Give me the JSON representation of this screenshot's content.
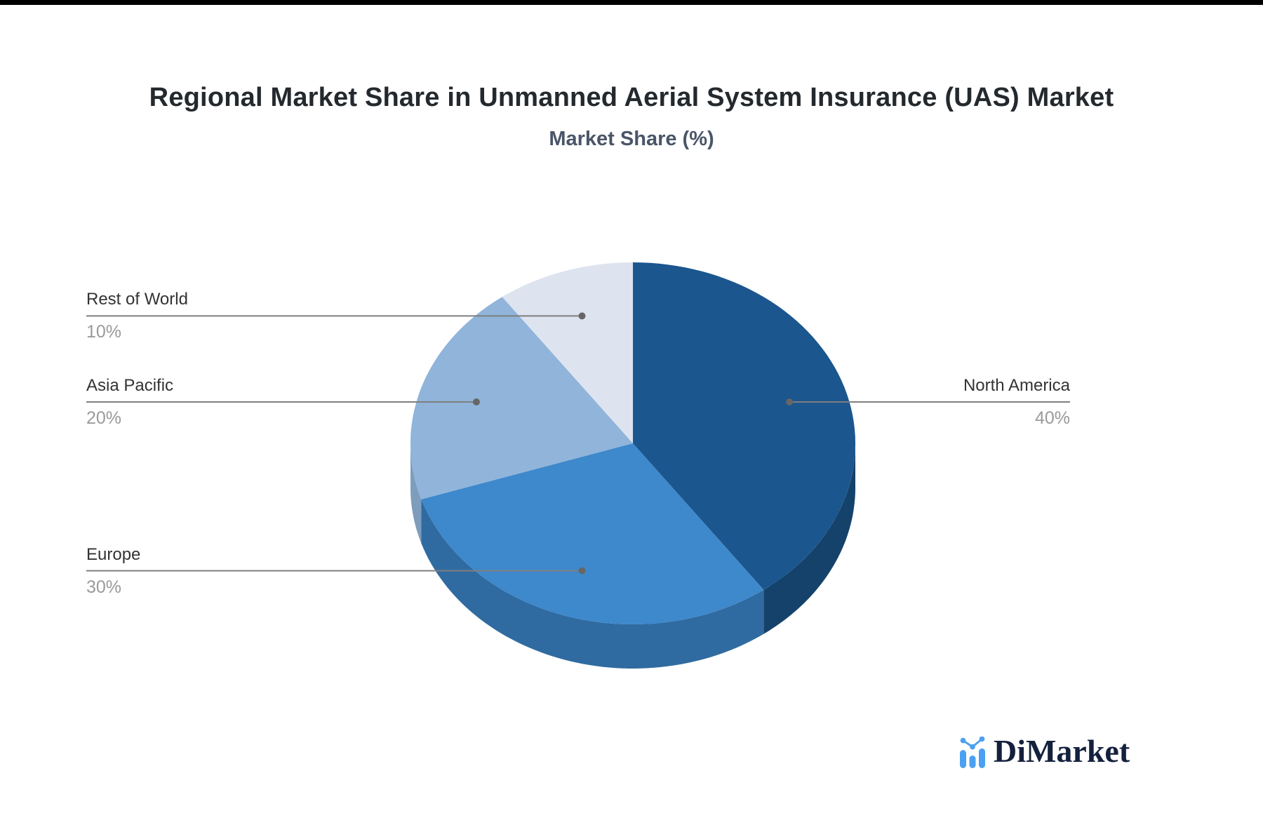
{
  "title": "Regional Market Share in Unmanned Aerial System Insurance (UAS) Market",
  "subtitle": "Market Share (%)",
  "brand": {
    "name": "DiMarket",
    "icon": "bar-line-chart-icon",
    "icon_color": "#4ba0f2",
    "text_color": "#14213d"
  },
  "colors": {
    "background": "#ffffff",
    "top_border": "#000000",
    "title_text": "#24292e",
    "subtitle_text": "#4a5568",
    "callout_label_text": "#333333",
    "callout_value_text": "#9a9a9a",
    "callout_line": "#7f7f7f",
    "callout_dot": "#666666"
  },
  "chart_data": {
    "type": "pie",
    "title": "Regional Market Share in Unmanned Aerial System Insurance (UAS) Market",
    "subtitle": "Market Share (%)",
    "unit": "%",
    "start_angle_deg": 0,
    "direction": "clockwise",
    "effect_3d": true,
    "legend": "none",
    "slices": [
      {
        "label": "North America",
        "value": 40,
        "display_value": "40%",
        "color": "#1b568e",
        "side_color": "#15426b",
        "callout_side": "right"
      },
      {
        "label": "Europe",
        "value": 30,
        "display_value": "30%",
        "color": "#3e88cc",
        "side_color": "#2f6ba0",
        "callout_side": "left"
      },
      {
        "label": "Asia Pacific",
        "value": 20,
        "display_value": "20%",
        "color": "#90b4da",
        "side_color": "#7e9dbc",
        "callout_side": "left"
      },
      {
        "label": "Rest of World",
        "value": 10,
        "display_value": "10%",
        "color": "#dde4ef",
        "side_color": "#c3ccda",
        "callout_side": "left"
      }
    ]
  }
}
